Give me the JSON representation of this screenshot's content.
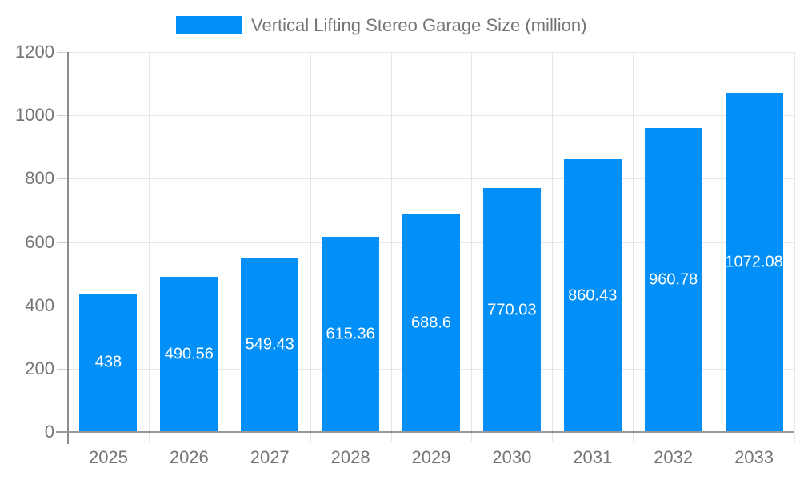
{
  "legend": {
    "label": "Vertical Lifting Stereo Garage Size (million)",
    "swatch_color": "#0290f8"
  },
  "chart_data": {
    "type": "bar",
    "title": "Vertical Lifting Stereo Garage Size (million)",
    "categories": [
      "2025",
      "2026",
      "2027",
      "2028",
      "2029",
      "2030",
      "2031",
      "2032",
      "2033"
    ],
    "values": [
      438,
      490.56,
      549.43,
      615.36,
      688.6,
      770.03,
      860.43,
      960.78,
      1072.08
    ],
    "value_labels": [
      "438",
      "490.56",
      "549.43",
      "615.36",
      "688.6",
      "770.03",
      "860.43",
      "960.78",
      "1072.08"
    ],
    "xlabel": "",
    "ylabel": "",
    "ylim": [
      0,
      1200
    ],
    "yticks": [
      0,
      200,
      400,
      600,
      800,
      1000,
      1200
    ],
    "grid": true,
    "legend_position": "top-center",
    "colors": {
      "bar": "#0290f8",
      "value_label": "#ffffff",
      "axis_text": "#757575",
      "axis_line": "#8c8c8c",
      "baseline": "#999999",
      "gridline": "#e6e6e6",
      "tick": "#cccccc"
    }
  }
}
